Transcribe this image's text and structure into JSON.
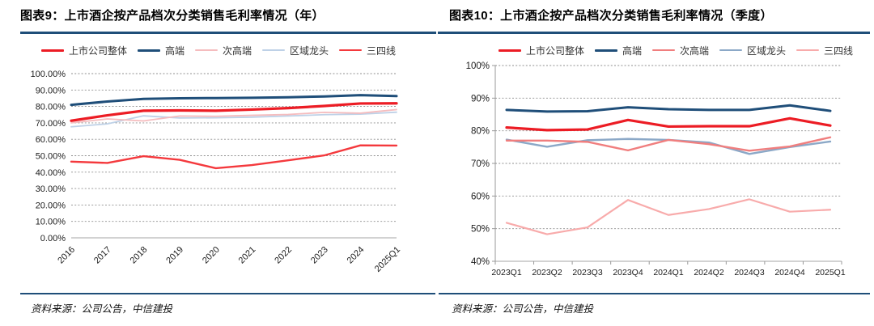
{
  "panels": [
    {
      "title": "图表9：上市酒企按产品档次分类销售毛利率情况（年）",
      "source": "资料来源：公司公告，中信建投"
    },
    {
      "title": "图表10：上市酒企按产品档次分类销售毛利率情况（季度）",
      "source": "资料来源：公司公告，中信建投"
    }
  ],
  "colors": {
    "rule": "#1f4e79",
    "grid": "#8f8f8f",
    "axis": "#999999"
  },
  "chart_data": [
    {
      "type": "line",
      "title": "上市酒企按产品档次分类销售毛利率情况（年）",
      "xlabel": "",
      "ylabel": "",
      "ylim": [
        0,
        100
      ],
      "grid": true,
      "legend_position": "top",
      "x_labels_rotated": true,
      "categories": [
        "2016",
        "2017",
        "2018",
        "2019",
        "2020",
        "2021",
        "2022",
        "2023",
        "2024",
        "2025Q1"
      ],
      "yticks": [
        {
          "v": 100,
          "label": "100.00%"
        },
        {
          "v": 90,
          "label": "90.00%"
        },
        {
          "v": 80,
          "label": "80.00%"
        },
        {
          "v": 70,
          "label": "70.00%"
        },
        {
          "v": 60,
          "label": "60.00%"
        },
        {
          "v": 50,
          "label": "50.00%"
        },
        {
          "v": 40,
          "label": "40.00%"
        },
        {
          "v": 30,
          "label": "30.00%"
        },
        {
          "v": 20,
          "label": "20.00%"
        },
        {
          "v": 10,
          "label": "10.00%"
        },
        {
          "v": 0,
          "label": "0.00%",
          "solid": true
        }
      ],
      "series": [
        {
          "name": "上市公司整体",
          "color": "#ec1c24",
          "width": 3.2,
          "values": [
            71.3,
            74.6,
            77.4,
            77.6,
            77.4,
            78.1,
            79.0,
            80.3,
            81.8,
            81.9
          ]
        },
        {
          "name": "高端",
          "color": "#1f4e79",
          "width": 3.0,
          "values": [
            81.0,
            83.0,
            84.6,
            85.0,
            85.1,
            85.3,
            85.6,
            86.1,
            86.9,
            86.3
          ]
        },
        {
          "name": "次高端",
          "color": "#f5bcbe",
          "width": 1.8,
          "values": [
            70.0,
            72.4,
            71.2,
            74.2,
            74.0,
            74.6,
            75.1,
            76.4,
            75.9,
            78.1
          ]
        },
        {
          "name": "区域龙头",
          "color": "#bed1e7",
          "width": 1.8,
          "values": [
            67.6,
            69.4,
            74.3,
            73.0,
            73.1,
            73.5,
            74.2,
            75.0,
            75.3,
            76.5
          ]
        },
        {
          "name": "三四线",
          "color": "#f4393d",
          "width": 2.4,
          "values": [
            46.4,
            45.6,
            49.7,
            47.5,
            42.4,
            44.3,
            47.2,
            50.2,
            56.3,
            56.2
          ]
        }
      ]
    },
    {
      "type": "line",
      "title": "上市酒企按产品档次分类销售毛利率情况（季度）",
      "xlabel": "",
      "ylabel": "",
      "ylim": [
        40,
        100
      ],
      "grid": true,
      "legend_position": "top",
      "x_labels_rotated": false,
      "y_axis_line": true,
      "categories": [
        "2023Q1",
        "2023Q2",
        "2023Q3",
        "2023Q4",
        "2024Q1",
        "2024Q2",
        "2024Q3",
        "2024Q4",
        "2025Q1"
      ],
      "yticks": [
        {
          "v": 100,
          "label": "100%"
        },
        {
          "v": 90,
          "label": "90%"
        },
        {
          "v": 80,
          "label": "80%"
        },
        {
          "v": 70,
          "label": "70%"
        },
        {
          "v": 60,
          "label": "60%"
        },
        {
          "v": 50,
          "label": "50%"
        },
        {
          "v": 40,
          "label": "40%",
          "solid": true
        }
      ],
      "series": [
        {
          "name": "上市公司整体",
          "color": "#ec1c24",
          "width": 3.2,
          "values": [
            81.0,
            80.2,
            80.4,
            83.3,
            81.3,
            81.4,
            81.4,
            83.8,
            81.6
          ]
        },
        {
          "name": "高端",
          "color": "#1f4e79",
          "width": 3.0,
          "values": [
            86.4,
            85.9,
            86.0,
            87.2,
            86.6,
            86.4,
            86.4,
            87.8,
            86.1
          ]
        },
        {
          "name": "次高端",
          "color": "#f07e7e",
          "width": 2.4,
          "values": [
            77.0,
            77.0,
            76.6,
            74.0,
            77.2,
            75.9,
            73.9,
            75.2,
            78.0
          ]
        },
        {
          "name": "区域龙头",
          "color": "#8ba8c7",
          "width": 2.4,
          "values": [
            77.3,
            75.1,
            77.1,
            77.5,
            77.2,
            76.4,
            72.9,
            75.0,
            76.7
          ]
        },
        {
          "name": "三四线",
          "color": "#f8abab",
          "width": 2.2,
          "values": [
            51.8,
            48.3,
            50.4,
            58.8,
            54.2,
            56.0,
            59.0,
            55.2,
            55.8
          ]
        }
      ]
    }
  ]
}
